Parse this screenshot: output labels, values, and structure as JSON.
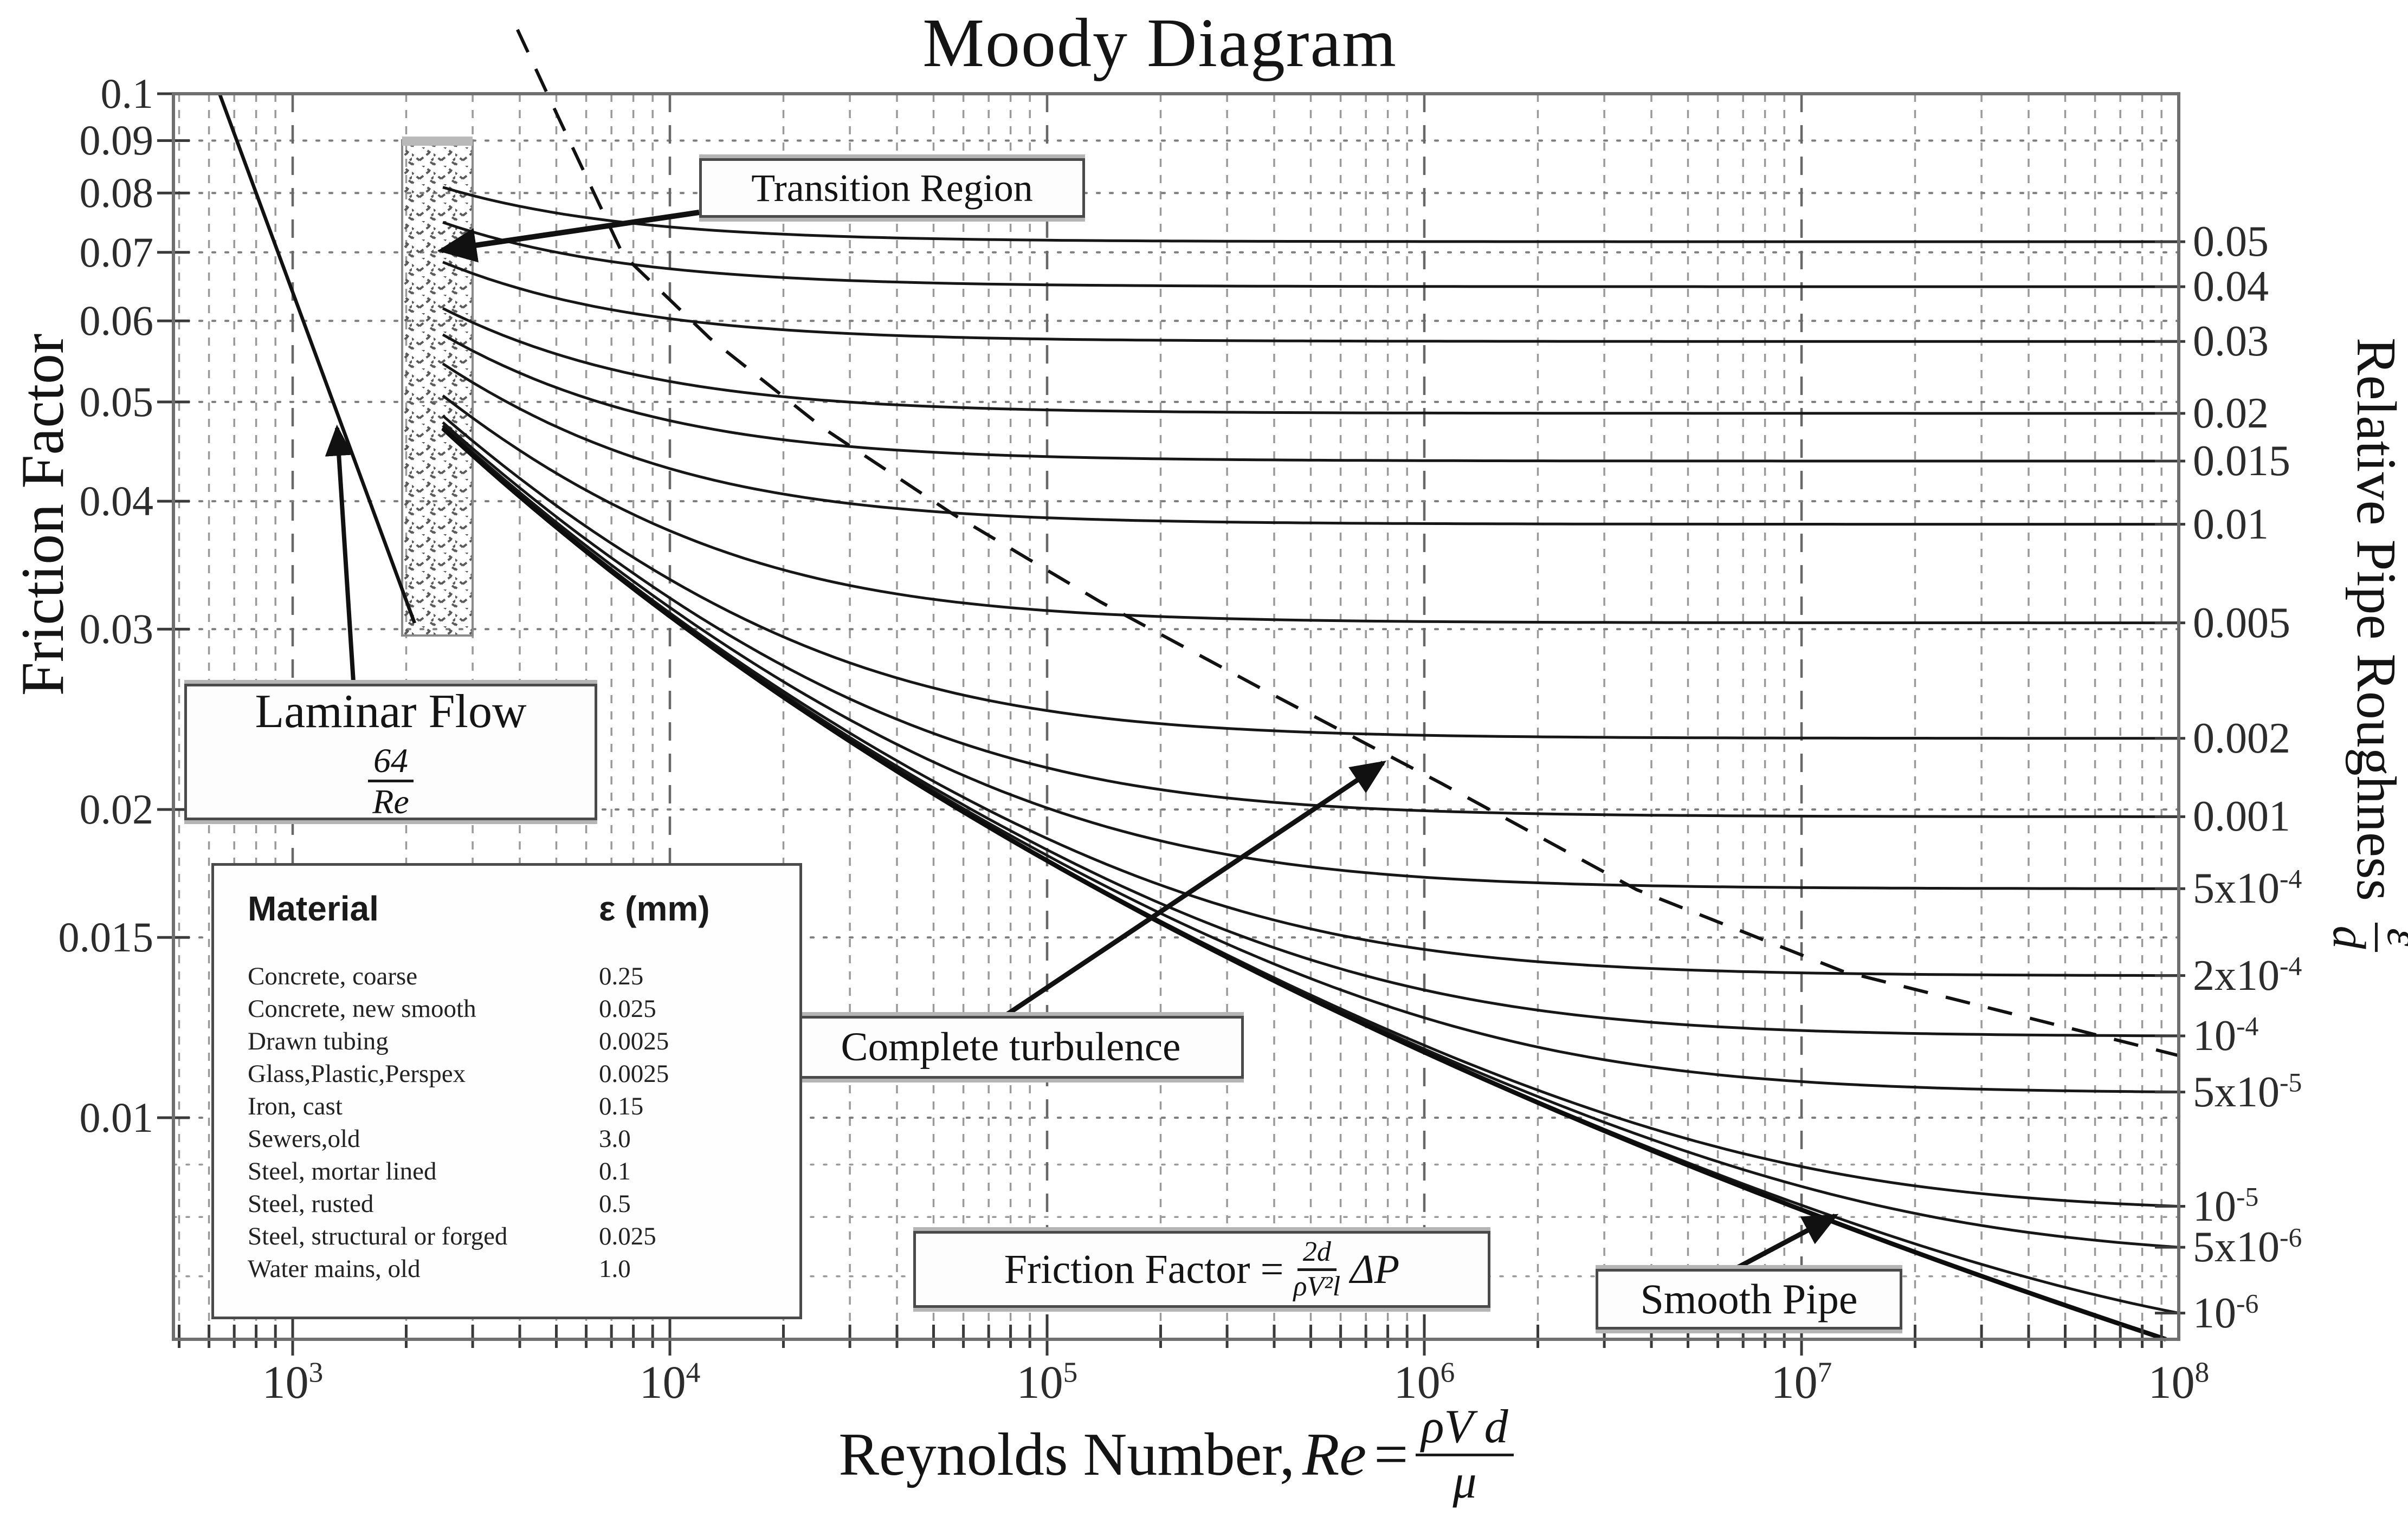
{
  "title": "Moody Diagram",
  "axes": {
    "x": {
      "label_prefix": "Reynolds Number, ",
      "symbol": "Re",
      "equals": " = ",
      "frac_num": "ρV d",
      "frac_den": "μ",
      "tick_base": "10",
      "ticks": [
        {
          "exp": "3",
          "logRe": 3
        },
        {
          "exp": "4",
          "logRe": 4
        },
        {
          "exp": "5",
          "logRe": 5
        },
        {
          "exp": "6",
          "logRe": 6
        },
        {
          "exp": "7",
          "logRe": 7
        },
        {
          "exp": "8",
          "logRe": 8
        }
      ]
    },
    "y_left": {
      "label": "Friction Factor",
      "ticks": [
        {
          "text": "0.1",
          "f": 0.1
        },
        {
          "text": "0.09",
          "f": 0.09
        },
        {
          "text": "0.08",
          "f": 0.08
        },
        {
          "text": "0.07",
          "f": 0.07
        },
        {
          "text": "0.06",
          "f": 0.06
        },
        {
          "text": "0.05",
          "f": 0.05
        },
        {
          "text": "0.04",
          "f": 0.04
        },
        {
          "text": "0.03",
          "f": 0.03
        },
        {
          "text": "0.02",
          "f": 0.02
        },
        {
          "text": "0.015",
          "f": 0.015
        },
        {
          "text": "0.01",
          "f": 0.01
        }
      ]
    },
    "y_right": {
      "label": "Relative Pipe Roughness",
      "frac_num": "ε",
      "frac_den": "d"
    }
  },
  "annotations": {
    "transition_region": {
      "text": "Transition Region"
    },
    "laminar_flow": {
      "line1": "Laminar Flow",
      "frac_num": "64",
      "frac_den": "Re"
    },
    "complete_turbulence": {
      "text": "Complete turbulence"
    },
    "friction_formula": {
      "prefix": "Friction Factor = ",
      "frac_num": "2d",
      "frac_den": "ρV²l",
      "suffix": "ΔP"
    },
    "smooth_pipe": {
      "text": "Smooth Pipe"
    }
  },
  "material_table": {
    "header": [
      "Material",
      "ε (mm)"
    ],
    "rows": [
      [
        "Concrete, coarse",
        "0.25"
      ],
      [
        "Concrete, new smooth",
        "0.025"
      ],
      [
        "Drawn tubing",
        "0.0025"
      ],
      [
        "Glass,Plastic,Perspex",
        "0.0025"
      ],
      [
        "Iron, cast",
        "0.15"
      ],
      [
        "Sewers,old",
        "3.0"
      ],
      [
        "Steel, mortar lined",
        "0.1"
      ],
      [
        "Steel, rusted",
        "0.5"
      ],
      [
        "Steel, structural or forged",
        "0.025"
      ],
      [
        "Water mains, old",
        "1.0"
      ]
    ]
  },
  "chart_data": {
    "type": "line",
    "title": "Moody Diagram",
    "xlabel": "Reynolds Number, Re = ρVd/μ",
    "ylabel": "Friction Factor",
    "ylabel_right": "Relative Pipe Roughness ε/d",
    "x_scale": "log",
    "y_scale": "log",
    "x_range": [
      483,
      100000000
    ],
    "y_range": [
      0.006,
      0.1
    ],
    "grid": {
      "y_major_f": [
        0.09,
        0.08,
        0.07,
        0.06,
        0.05,
        0.04,
        0.03,
        0.02,
        0.015,
        0.01
      ],
      "y_minor_f": [
        0.009,
        0.008,
        0.007
      ]
    },
    "laminar_line": {
      "formula": "f = 64/Re",
      "re_range": [
        640,
        2105
      ]
    },
    "transition_band": {
      "re_range": [
        1950,
        3000
      ],
      "f_range": [
        0.0295,
        0.09
      ]
    },
    "turbulent_model": "Haaland approximation of Colebrook: 1/sqrt(f) = -1.8 log10[(eps/d/3.7)^1.11 + 6.9/Re]",
    "turbulent_re_range": [
      2500,
      100000000
    ],
    "roughness_series": [
      {
        "eps": 0.05,
        "label": "0.05",
        "exp": null
      },
      {
        "eps": 0.04,
        "label": "0.04",
        "exp": null
      },
      {
        "eps": 0.03,
        "label": "0.03",
        "exp": null
      },
      {
        "eps": 0.02,
        "label": "0.02",
        "exp": null
      },
      {
        "eps": 0.015,
        "label": "0.015",
        "exp": null
      },
      {
        "eps": 0.01,
        "label": "0.01",
        "exp": null
      },
      {
        "eps": 0.005,
        "label": "0.005",
        "exp": null
      },
      {
        "eps": 0.002,
        "label": "0.002",
        "exp": null
      },
      {
        "eps": 0.001,
        "label": "0.001",
        "exp": null
      },
      {
        "eps": 0.0005,
        "label": "5x10",
        "exp": "-4"
      },
      {
        "eps": 0.0002,
        "label": "2x10",
        "exp": "-4"
      },
      {
        "eps": 0.0001,
        "label": "10",
        "exp": "-4"
      },
      {
        "eps": 5e-05,
        "label": "5x10",
        "exp": "-5"
      },
      {
        "eps": 1e-05,
        "label": "10",
        "exp": "-5"
      },
      {
        "eps": 5e-06,
        "label": "5x10",
        "exp": "-6"
      },
      {
        "eps": 1e-06,
        "label": "10",
        "exp": "-6"
      }
    ],
    "smooth_pipe": {
      "eps": 0
    },
    "complete_turbulence_boundary": {
      "style": "dashed",
      "points_logRe_f": [
        [
          3.596,
          0.1155
        ],
        [
          3.675,
          0.1
        ],
        [
          3.876,
          0.0696
        ],
        [
          4.106,
          0.0577
        ],
        [
          4.408,
          0.0471
        ],
        [
          4.753,
          0.0388
        ],
        [
          5.141,
          0.0319
        ],
        [
          5.572,
          0.0262
        ],
        [
          6.046,
          0.0212
        ],
        [
          6.563,
          0.0167
        ],
        [
          7.109,
          0.0139
        ],
        [
          7.684,
          0.0123
        ],
        [
          8.0,
          0.0115
        ]
      ]
    }
  }
}
